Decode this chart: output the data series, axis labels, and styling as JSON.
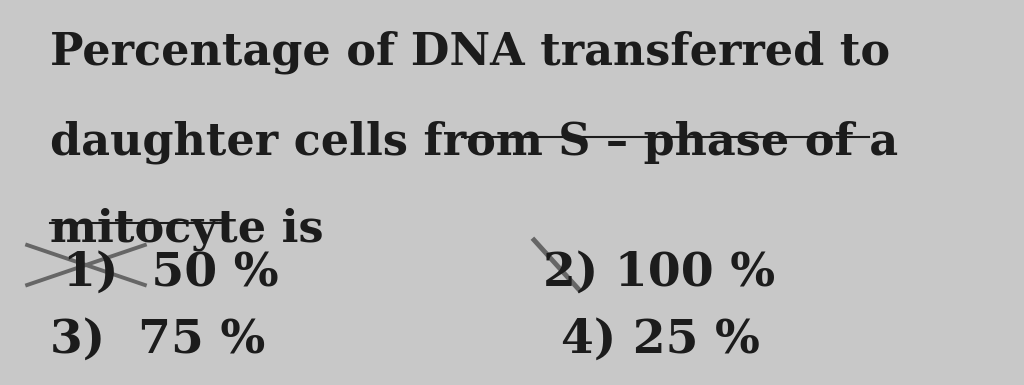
{
  "title_line1": "Percentage of DNA transferred to",
  "title_line2": "daughter cells from S – phase of a",
  "title_line3": "mitocyte is",
  "option1_num": "1)",
  "option1_val": "50 %",
  "option2_num": "2)",
  "option2_val": "100 %",
  "option3": "3)  75 %",
  "option4": "4) 25 %",
  "bg_color": "#c8c8c8",
  "text_color": "#1c1c1c",
  "mark_color": "#666666",
  "title_fontsize": 32,
  "option_fontsize": 34
}
